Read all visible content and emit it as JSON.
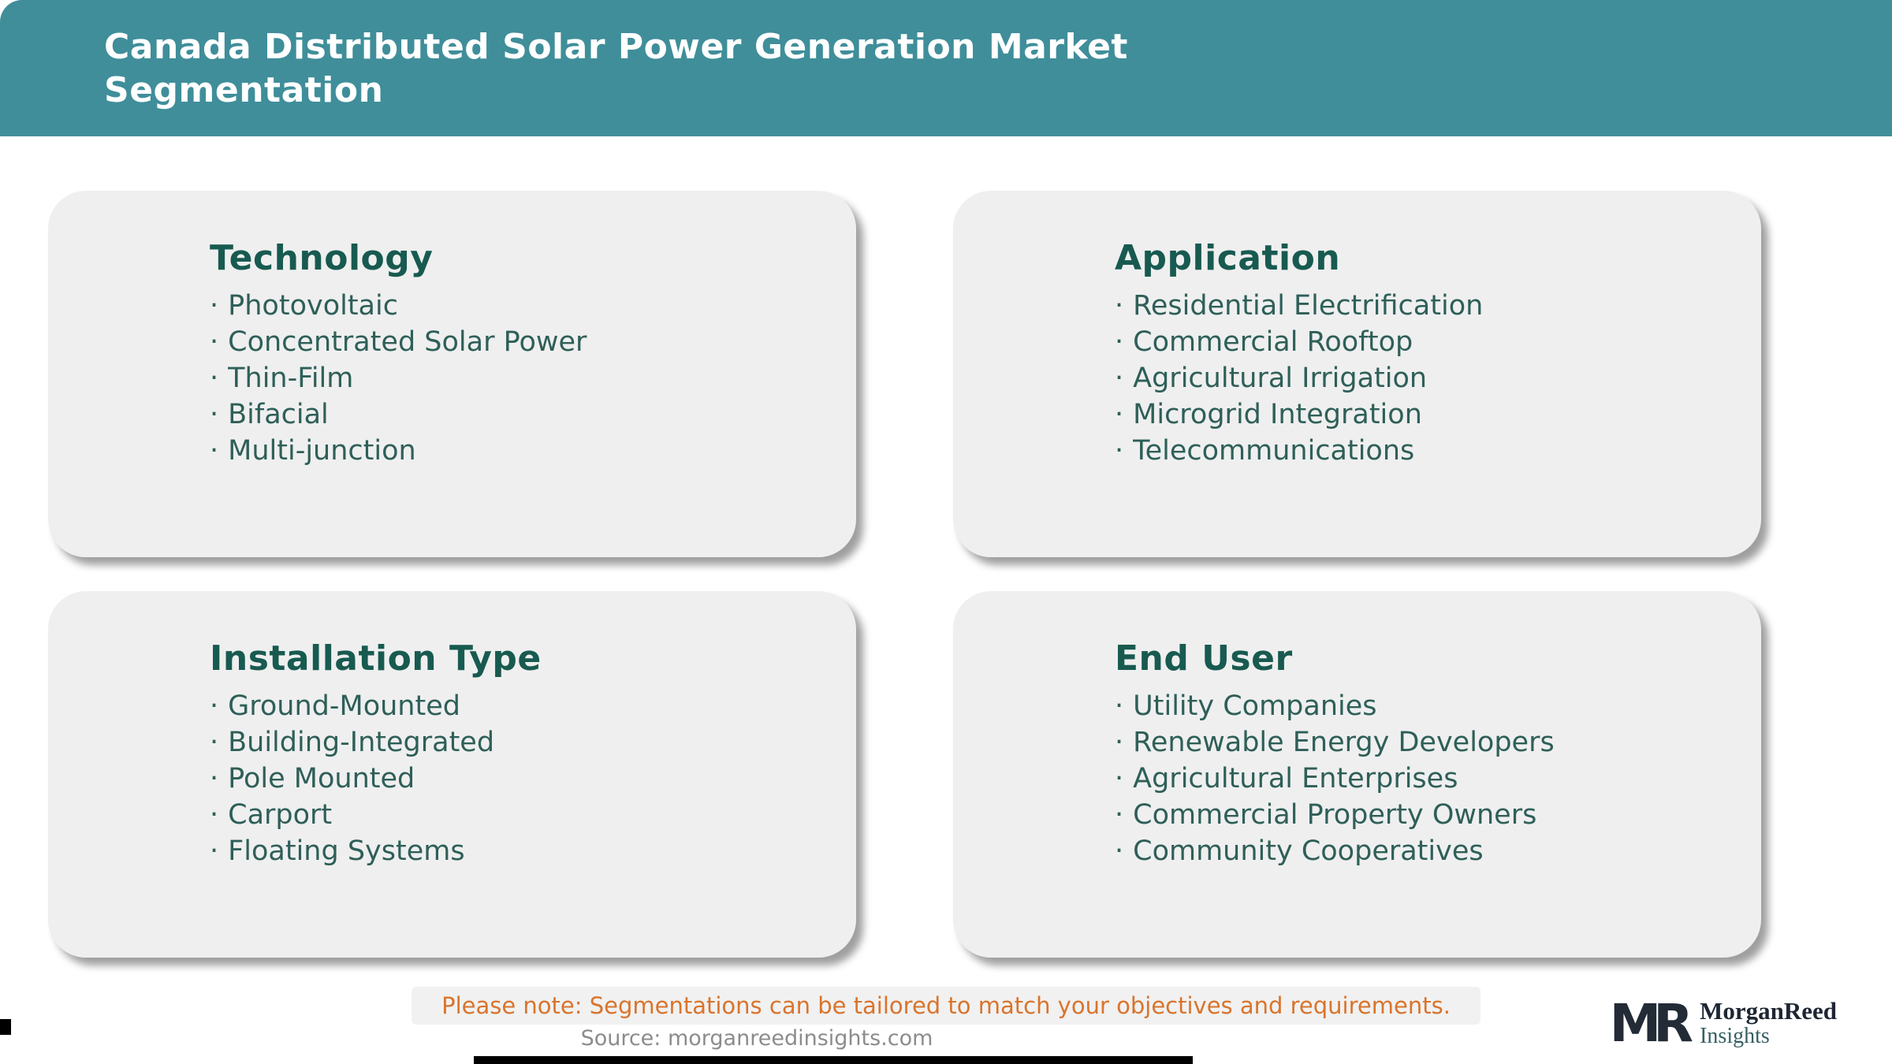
{
  "ui": {
    "bullet": "·"
  },
  "header": {
    "title": "Canada Distributed Solar Power Generation Market Segmentation"
  },
  "cards": [
    {
      "title": "Technology",
      "items": [
        "Photovoltaic",
        "Concentrated Solar Power",
        "Thin-Film",
        "Bifacial",
        "Multi-junction"
      ]
    },
    {
      "title": "Application",
      "items": [
        "Residential Electrification",
        "Commercial Rooftop",
        "Agricultural Irrigation",
        "Microgrid Integration",
        "Telecommunications"
      ]
    },
    {
      "title": "Installation Type",
      "items": [
        "Ground-Mounted",
        "Building-Integrated",
        "Pole Mounted",
        "Carport",
        "Floating Systems"
      ]
    },
    {
      "title": "End User",
      "items": [
        "Utility Companies",
        "Renewable Energy Developers",
        "Agricultural Enterprises",
        "Commercial Property Owners",
        "Community Cooperatives"
      ]
    }
  ],
  "footer": {
    "note": "Please note: Segmentations can be tailored to match your objectives and requirements.",
    "source": "Source: morganreedinsights.com"
  },
  "logo": {
    "monogram": "MR",
    "name": "MorganReed",
    "tagline": "Insights"
  },
  "colors": {
    "header_bg": "#3f8e9a",
    "card_bg": "#efefef",
    "card_title_text": "#185a50",
    "card_item_text": "#2e5f58",
    "note_text": "#d9742c",
    "source_text": "#8c8c8c"
  }
}
